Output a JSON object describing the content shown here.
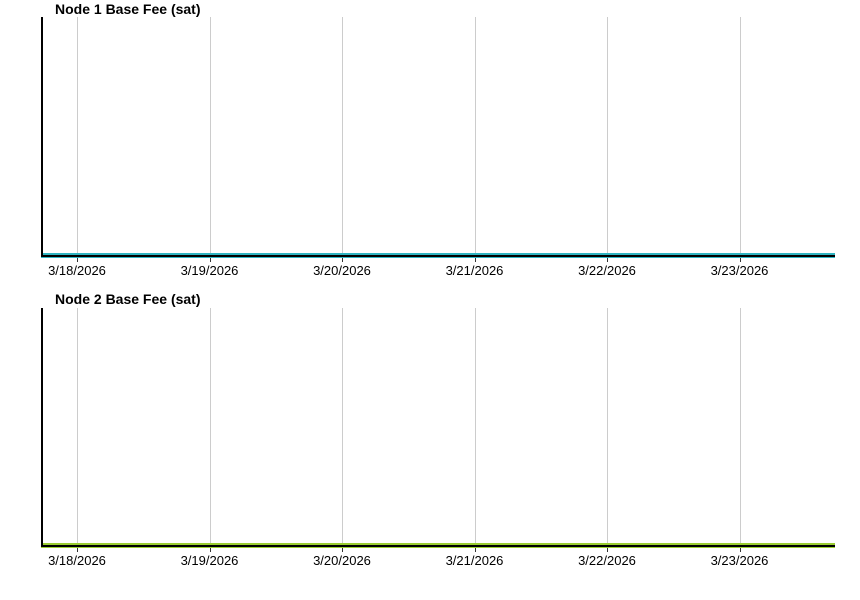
{
  "style": {
    "background": "#FFFFFF",
    "grid_color": "#CCCCCC",
    "axis_color": "#000000",
    "tick_color": "#333333",
    "label_color": "#000000",
    "title_color": "#000000"
  },
  "chart_data": [
    {
      "type": "line",
      "title": "Node 1 Base Fee (sat)",
      "xlabel": "",
      "ylabel": "",
      "categories": [
        "3/18/2026",
        "3/19/2026",
        "3/20/2026",
        "3/21/2026",
        "3/22/2026",
        "3/23/2026"
      ],
      "series": [
        {
          "name": "Node 1 Base Fee",
          "color": "#2FB4C1",
          "values": [
            0,
            0,
            0,
            0,
            0,
            0
          ]
        }
      ],
      "y_tick_labels": [],
      "grid": "vertical-only",
      "legend": "none",
      "note": "flat line at minimum of y-axis across entire x range"
    },
    {
      "type": "line",
      "title": "Node 2 Base Fee (sat)",
      "xlabel": "",
      "ylabel": "",
      "categories": [
        "3/18/2026",
        "3/19/2026",
        "3/20/2026",
        "3/21/2026",
        "3/22/2026",
        "3/23/2026"
      ],
      "series": [
        {
          "name": "Node 2 Base Fee",
          "color": "#9ACD32",
          "values": [
            0,
            0,
            0,
            0,
            0,
            0
          ]
        }
      ],
      "y_tick_labels": [],
      "grid": "vertical-only",
      "legend": "none",
      "note": "flat line at minimum of y-axis across entire x range"
    }
  ]
}
